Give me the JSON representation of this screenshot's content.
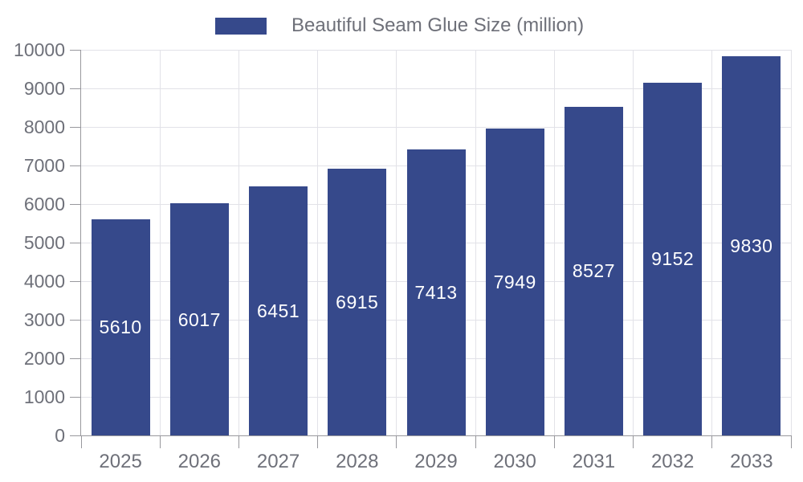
{
  "chart_data": {
    "type": "bar",
    "title": "",
    "legend": "Beautiful Seam Glue Size (million)",
    "categories": [
      "2025",
      "2026",
      "2027",
      "2028",
      "2029",
      "2030",
      "2031",
      "2032",
      "2033"
    ],
    "values": [
      5610,
      6017,
      6451,
      6915,
      7413,
      7949,
      8527,
      9152,
      9830
    ],
    "series": [
      {
        "name": "Beautiful Seam Glue Size (million)",
        "values": [
          5610,
          6017,
          6451,
          6915,
          7413,
          7949,
          8527,
          9152,
          9830
        ]
      }
    ],
    "xlabel": "",
    "ylabel": "",
    "ylim": [
      0,
      10000
    ],
    "ytick_step": 1000,
    "ytick_labels": [
      "0",
      "1000",
      "2000",
      "3000",
      "4000",
      "5000",
      "6000",
      "7000",
      "8000",
      "9000",
      "10000"
    ],
    "grid": "on",
    "legend_position": "top",
    "bar_labels_visible": true,
    "bar_label_position": "inside-center",
    "colors": {
      "bar": "#36498B",
      "bar_label": "#FFFFFF",
      "axis": "#98989D",
      "grid": "#E2E2E8",
      "tick_label": "#6E7079",
      "legend_text": "#6E7079",
      "background": "#FFFFFF"
    }
  }
}
